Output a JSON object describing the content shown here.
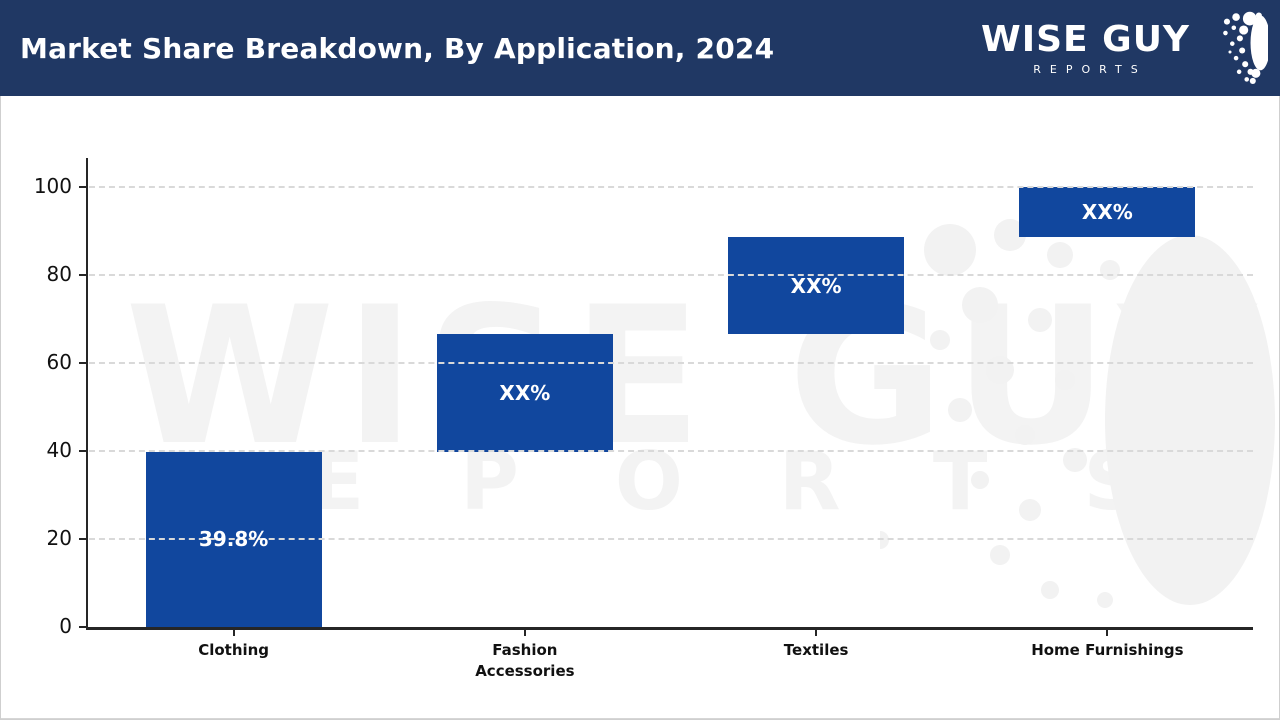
{
  "header": {
    "title": "Market Share Breakdown, By Application, 2024",
    "logo": {
      "primary": "WISE GUY",
      "secondary": "REPORTS"
    }
  },
  "watermark": {
    "primary": "WISE GUY",
    "secondary": "REPORTS"
  },
  "colors": {
    "header_bg": "#203864",
    "bar": "#11479e",
    "bar_label": "#ffffff",
    "grid": "#d9d9d9",
    "axis": "#262626",
    "watermark": "#f3f3f3"
  },
  "chart_data": {
    "type": "bar",
    "subtype": "waterfall (floating cumulative bars)",
    "title": "Market Share Breakdown, By Application, 2024",
    "categories": [
      "Clothing",
      "Fashion\nAccessories",
      "Textiles",
      "Home Furnishings"
    ],
    "segments": [
      {
        "category": "Clothing",
        "start": 0,
        "end": 39.8,
        "label": "39.8%"
      },
      {
        "category": "Fashion Accessories",
        "start": 39.8,
        "end": 66.6,
        "label": "XX%"
      },
      {
        "category": "Textiles",
        "start": 66.6,
        "end": 88.6,
        "label": "XX%"
      },
      {
        "category": "Home Furnishings",
        "start": 88.6,
        "end": 100,
        "label": "XX%"
      }
    ],
    "xlabel": "",
    "ylabel": "",
    "yticks": [
      0,
      20,
      40,
      60,
      80,
      100
    ],
    "ylim": [
      0,
      106.5
    ],
    "grid": "horizontal dashed gridlines, drawn above bars",
    "legend": "none"
  }
}
